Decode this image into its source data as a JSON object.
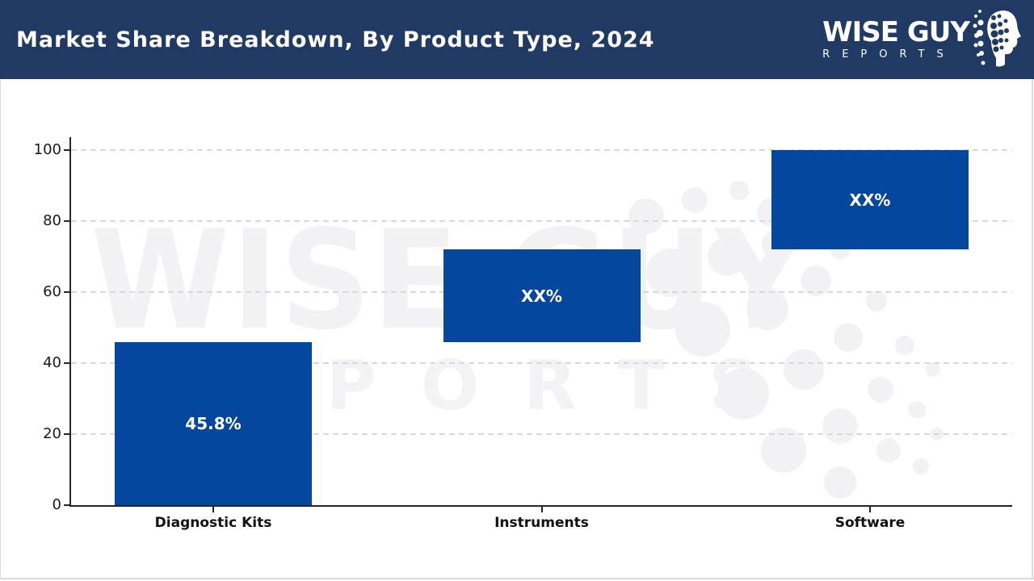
{
  "page": {
    "background": "#ffffff",
    "edge_color": "#dcdcdc"
  },
  "header": {
    "title": "Market Share Breakdown, By Product Type, 2024",
    "background": "#213a63",
    "text_color": "#ffffff",
    "logo": {
      "line1": "WISE GUY",
      "line2": "REPORTS"
    }
  },
  "watermark": {
    "line1": "WISE GUY",
    "line2": "REPORTS"
  },
  "chart_data": {
    "type": "bar",
    "subtype": "stacked-waterfall-segments",
    "title": "Market Share Breakdown, By Product Type, 2024",
    "categories": [
      "Diagnostic Kits",
      "Instruments",
      "Software"
    ],
    "bars": [
      {
        "category": "Diagnostic Kits",
        "from": 0,
        "to": 45.8,
        "label": "45.8%"
      },
      {
        "category": "Instruments",
        "from": 45.8,
        "to": 72,
        "label": "XX%"
      },
      {
        "category": "Software",
        "from": 72,
        "to": 100,
        "label": "XX%"
      }
    ],
    "xlabel": "",
    "ylabel": "",
    "ylim": [
      0,
      100
    ],
    "yticks": [
      0,
      20,
      40,
      60,
      80,
      100
    ],
    "grid": "horizontal dashed",
    "legend": "none",
    "bar_color": "#05479e",
    "bar_label_color": "#ffffff",
    "axis_color": "#262626",
    "gridline_color": "#d9d9d9",
    "tick_label_color": "#1a1a1a"
  }
}
